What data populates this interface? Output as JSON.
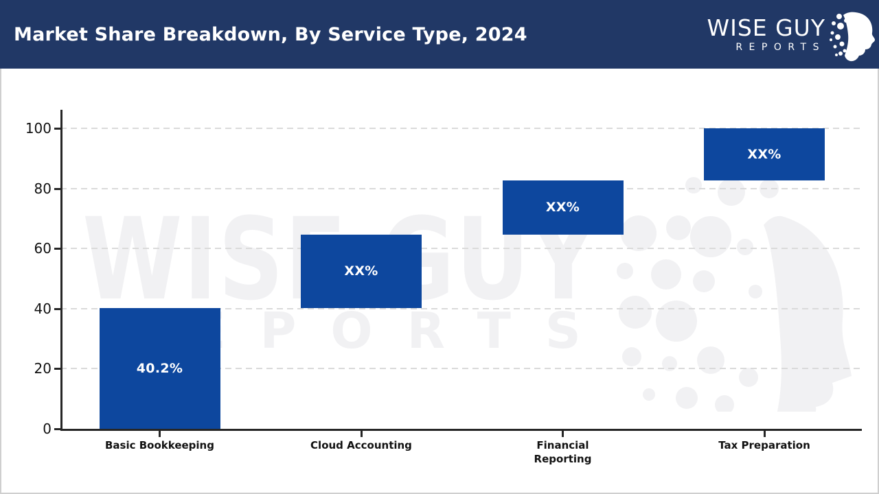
{
  "header": {
    "title": "Market Share Breakdown, By Service Type, 2024",
    "logo": {
      "line1": "WISE GUY",
      "line2": "REPORTS"
    }
  },
  "watermark": {
    "line1": "WISE GUY",
    "line2": "REPORTS"
  },
  "colors": {
    "header_bg": "#213866",
    "bar": "#0d479e",
    "bar_label_text": "#ffffff",
    "axis": "#262626",
    "gridline": "#dadada",
    "watermark": "#f1f1f3",
    "frame_border": "#cfcfcf",
    "title_text": "#ffffff",
    "tick_text": "#111111"
  },
  "chart_data": {
    "type": "bar",
    "subtype": "floating-waterfall",
    "title": "Market Share Breakdown, By Service Type, 2024",
    "categories": [
      "Basic Bookkeeping",
      "Cloud Accounting",
      "Financial Reporting",
      "Tax Preparation"
    ],
    "category_lines": [
      [
        "Basic Bookkeeping"
      ],
      [
        "Cloud Accounting"
      ],
      [
        "Financial",
        "Reporting"
      ],
      [
        "Tax Preparation"
      ]
    ],
    "bars": [
      {
        "category": "Basic Bookkeeping",
        "start": 0,
        "end": 40.2,
        "label": "40.2%"
      },
      {
        "category": "Cloud Accounting",
        "start": 40.2,
        "end": 64.7,
        "label": "XX%"
      },
      {
        "category": "Financial Reporting",
        "start": 64.7,
        "end": 82.7,
        "label": "XX%"
      },
      {
        "category": "Tax Preparation",
        "start": 82.7,
        "end": 100,
        "label": "XX%"
      }
    ],
    "ylim": [
      0,
      100
    ],
    "yticks": [
      0,
      20,
      40,
      60,
      80,
      100
    ],
    "xlabel": "",
    "ylabel": "",
    "grid": "horizontal dashed",
    "legend": "none"
  }
}
